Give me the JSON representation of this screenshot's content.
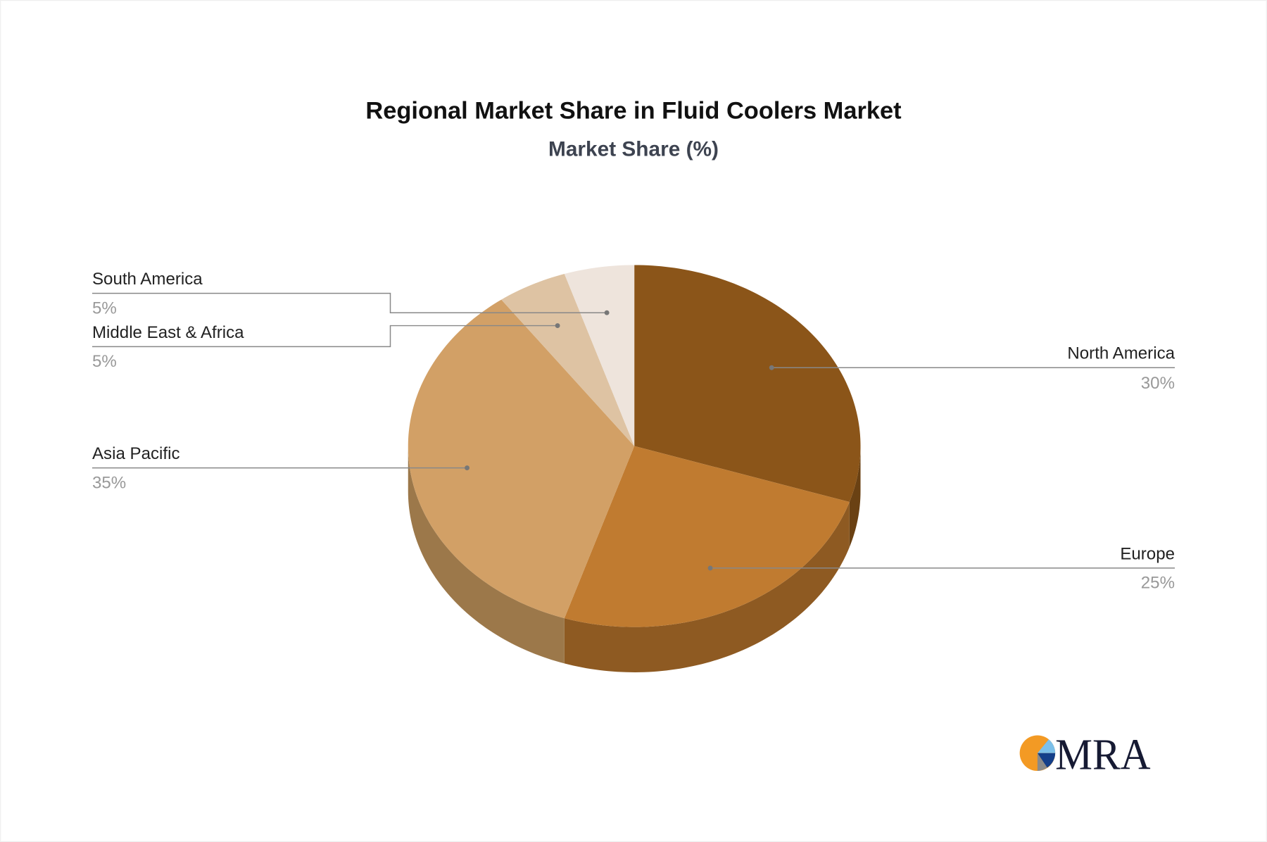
{
  "chart_data": {
    "type": "pie",
    "style": "3d",
    "title": "Regional Market Share in Fluid Coolers Market",
    "subtitle": "Market Share (%)",
    "slices": [
      {
        "label": "North America",
        "value": 30,
        "display": "30%",
        "color": "#8B5519",
        "side_color": "#6A4113"
      },
      {
        "label": "Europe",
        "value": 25,
        "display": "25%",
        "color": "#C07B30",
        "side_color": "#8E5A22"
      },
      {
        "label": "Asia Pacific",
        "value": 35,
        "display": "35%",
        "color": "#D2A066",
        "side_color": "#9C784A"
      },
      {
        "label": "Middle East & Africa",
        "value": 5,
        "display": "5%",
        "color": "#DEC3A3",
        "side_color": "#A89279"
      },
      {
        "label": "South America",
        "value": 5,
        "display": "5%",
        "color": "#EEE4DC",
        "side_color": "#B5AAA2"
      }
    ]
  },
  "logo": {
    "text": "MRA"
  }
}
